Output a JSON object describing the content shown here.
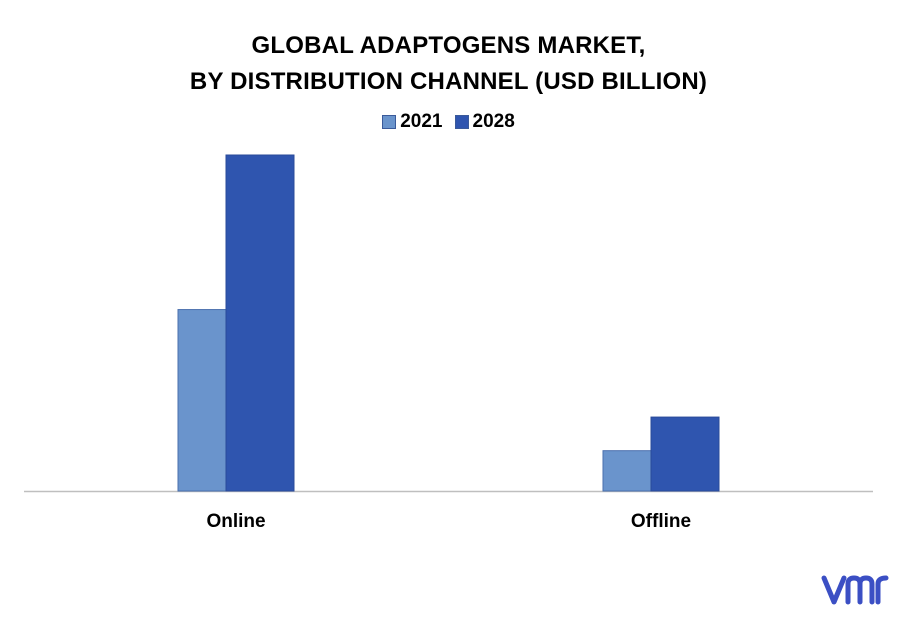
{
  "chart_data": {
    "type": "bar",
    "title_lines": [
      "GLOBAL ADAPTOGENS MARKET,",
      "BY DISTRIBUTION CHANNEL (USD BILLION)"
    ],
    "categories": [
      "Online",
      "Offline"
    ],
    "series": [
      {
        "name": "2021",
        "values": [
          5.4,
          1.2
        ],
        "color": "#6a94cc"
      },
      {
        "name": "2028",
        "values": [
          10.0,
          2.2
        ],
        "color": "#2f55af"
      }
    ],
    "ylim": [
      0,
      10.4
    ],
    "legend": "top-center",
    "grid": false
  },
  "branding": {
    "logo_name": "vmr-logo",
    "logo_color": "#3b4fc4"
  }
}
